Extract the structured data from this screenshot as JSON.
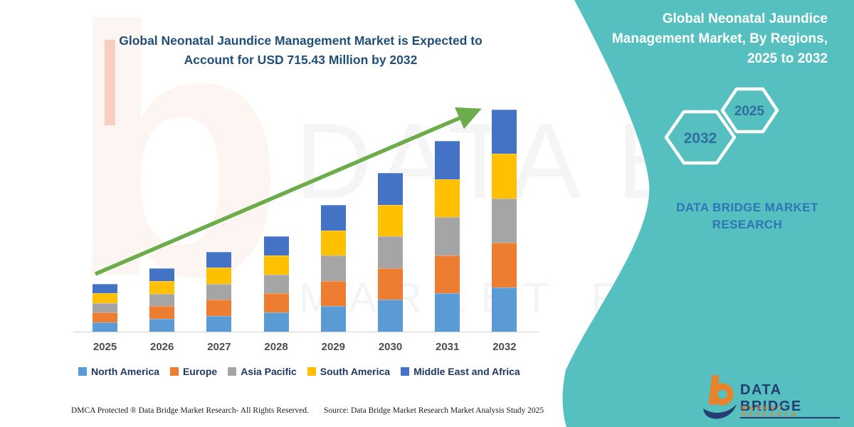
{
  "title": {
    "line1": "Global Neonatal Jaundice Management Market is Expected to",
    "line2": "Account for USD 715.43 Million by 2032",
    "color": "#1F4E79"
  },
  "sidebar": {
    "bg_color": "#56C0C0",
    "title_line1": "Global Neonatal Jaundice",
    "title_line2": "Management Market, By Regions,",
    "title_line3": "2025 to 2032",
    "hexagons": [
      {
        "label": "2032"
      },
      {
        "label": "2025"
      }
    ],
    "hex_label_color": "#2F6E9E",
    "brand_line1": "DATA BRIDGE MARKET",
    "brand_line2": "RESEARCH",
    "brand_text_color": "#2E75B6"
  },
  "logo": {
    "name": "DATA BRIDGE",
    "sub": "MARKET RESEARCH",
    "name_color": "#243E73",
    "sub_color": "#E8822B"
  },
  "footer": {
    "dmca": "DMCA Protected ® Data Bridge Market Research-  All Rights Reserved.",
    "source": "Source: Data Bridge Market Research  Market Analysis Study 2025"
  },
  "chart_data": {
    "type": "bar",
    "stacked": true,
    "title": "Global Neonatal Jaundice Management Market is Expected to Account for USD 715.43 Million by 2032",
    "unit": "USD Million",
    "categories": [
      "2025",
      "2026",
      "2027",
      "2028",
      "2029",
      "2030",
      "2031",
      "2032"
    ],
    "series": [
      {
        "name": "North America",
        "color": "#5B9BD5",
        "values": [
          30.7,
          40.8,
          51.4,
          61.5,
          81.6,
          102.3,
          122.9,
          143.1
        ]
      },
      {
        "name": "Europe",
        "color": "#ED7D31",
        "values": [
          30.7,
          40.8,
          51.4,
          61.5,
          81.6,
          102.3,
          122.9,
          143.1
        ]
      },
      {
        "name": "Asia Pacific",
        "color": "#A5A5A5",
        "values": [
          30.7,
          40.8,
          51.4,
          61.5,
          81.6,
          102.3,
          122.9,
          143.1
        ]
      },
      {
        "name": "South America",
        "color": "#FFC000",
        "values": [
          30.7,
          40.8,
          51.4,
          61.5,
          81.6,
          102.3,
          122.9,
          143.1
        ]
      },
      {
        "name": "Middle East and Africa",
        "color": "#4472C4",
        "values": [
          30.7,
          40.8,
          51.4,
          61.5,
          81.6,
          102.3,
          122.9,
          143.1
        ]
      }
    ],
    "totals": [
      153.6,
      204.1,
      256.8,
      307.3,
      408.2,
      511.4,
      614.6,
      715.43
    ],
    "ylim": [
      0,
      760
    ],
    "grid": false,
    "legend_position": "bottom",
    "trend_arrow_color": "#6BAD4A",
    "axis_line_color": "#d0d0d0",
    "tick_label_color": "#4d4d4d",
    "legend_text_color": "#1F3864",
    "watermark_letters": "DATA BRIDGE",
    "watermark_sub": "MARKET RESEARCH"
  }
}
